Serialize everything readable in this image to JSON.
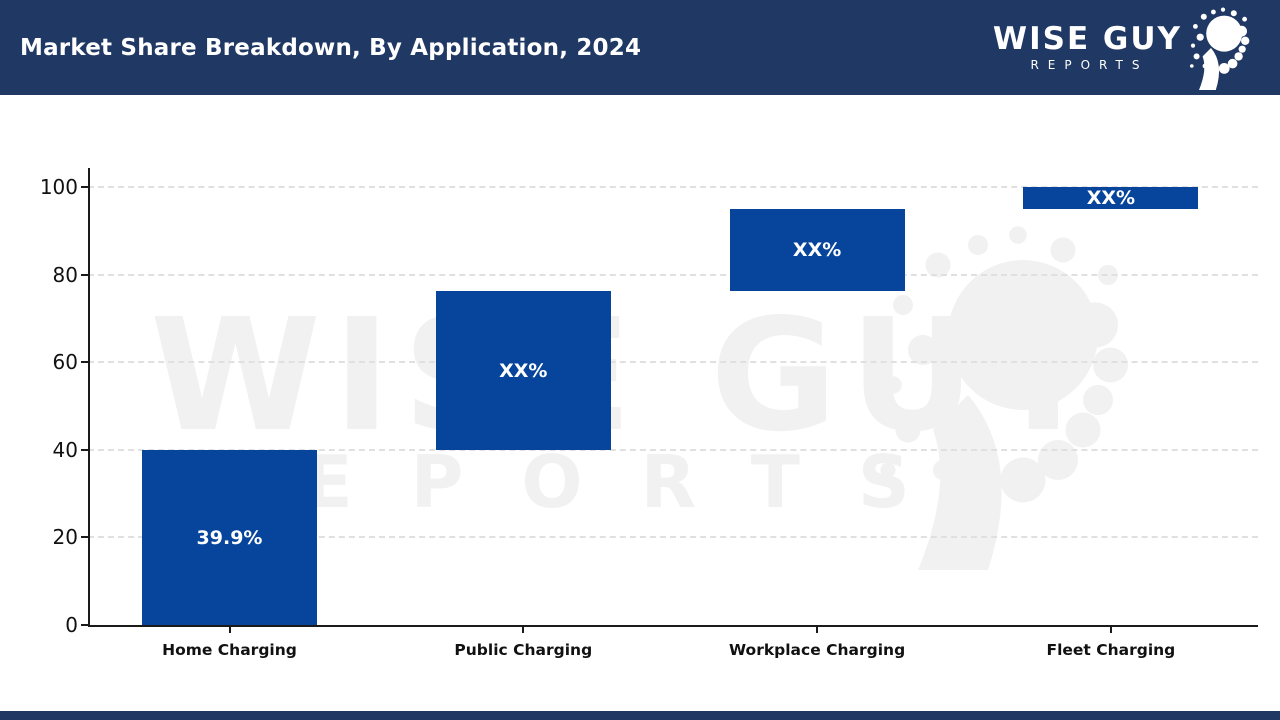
{
  "header": {
    "title": "Market Share Breakdown, By Application, 2024",
    "logo": {
      "line1": "WISE GUY",
      "line2": "REPORTS"
    }
  },
  "watermark": {
    "line1": "WISE GUY",
    "line2": "REPORTS"
  },
  "colors": {
    "header_bg": "#203864",
    "footer_bg": "#203864",
    "bar": "#07449b",
    "grid": "#e0e0e0",
    "axis": "#1a1a1a",
    "value_label": "#ffffff",
    "watermark": "#f1f1f1"
  },
  "chart_data": {
    "type": "bar",
    "subtype": "waterfall",
    "title": "Market Share Breakdown, By Application, 2024",
    "categories": [
      "Home Charging",
      "Public Charging",
      "Workplace Charging",
      "Fleet Charging"
    ],
    "segments": [
      {
        "category": "Home Charging",
        "start": 0,
        "end": 39.9,
        "label": "39.9%"
      },
      {
        "category": "Public Charging",
        "start": 39.9,
        "end": 76.3,
        "label": "XX%"
      },
      {
        "category": "Workplace Charging",
        "start": 76.3,
        "end": 95.0,
        "label": "XX%"
      },
      {
        "category": "Fleet Charging",
        "start": 95.0,
        "end": 100,
        "label": "XX%"
      }
    ],
    "ylabel": "",
    "xlabel": "",
    "ylim": [
      0,
      100
    ],
    "yticks": [
      0,
      20,
      40,
      60,
      80,
      100
    ],
    "grid": "horizontal-dashed",
    "legend": "none",
    "units": "percent"
  }
}
